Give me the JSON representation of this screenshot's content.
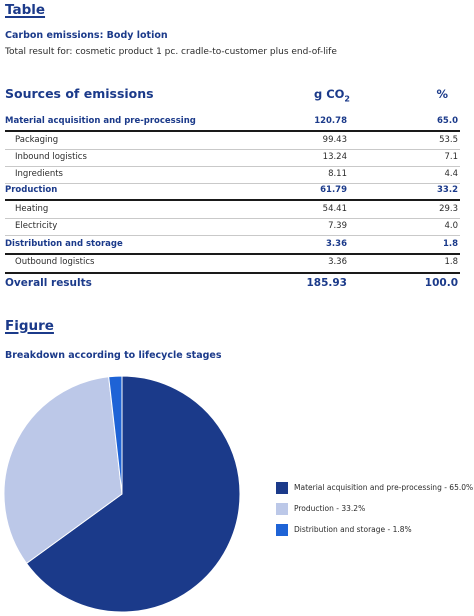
{
  "sections": {
    "table_title": "Table",
    "figure_title": "Figure"
  },
  "product": {
    "title": "Carbon emissions: Body lotion",
    "result_text": "Total result for: cosmetic product 1 pc. cradle-to-customer plus end-of-life"
  },
  "table": {
    "header": {
      "label": "Sources of emissions",
      "unit_prefix": "g CO",
      "unit_sub": "2",
      "percent": "%"
    },
    "rows": [
      {
        "label": "Material acquisition and pre-processing",
        "value": "120.78",
        "percent": "65.0"
      },
      {
        "label": "Packaging",
        "value": "99.43",
        "percent": "53.5"
      },
      {
        "label": "Inbound logistics",
        "value": "13.24",
        "percent": "7.1"
      },
      {
        "label": "Ingredients",
        "value": "8.11",
        "percent": "4.4"
      },
      {
        "label": "Production",
        "value": "61.79",
        "percent": "33.2"
      },
      {
        "label": "Heating",
        "value": "54.41",
        "percent": "29.3"
      },
      {
        "label": "Electricity",
        "value": "7.39",
        "percent": "4.0"
      },
      {
        "label": "Distribution and storage",
        "value": "3.36",
        "percent": "1.8"
      },
      {
        "label": "Outbound logistics",
        "value": "3.36",
        "percent": "1.8"
      }
    ],
    "total": {
      "label": "Overall results",
      "value": "185.93",
      "percent": "100.0"
    }
  },
  "figure": {
    "subtitle": "Breakdown according to lifecycle stages"
  },
  "chart_data": {
    "type": "pie",
    "title": "Breakdown according to lifecycle stages",
    "categories": [
      "Material acquisition and pre-processing",
      "Production",
      "Distribution and storage"
    ],
    "values": [
      65.0,
      33.2,
      1.8
    ],
    "colors": [
      "#1b3a8a",
      "#bcc8e8",
      "#1e63d6"
    ],
    "legend": [
      "Material acquisition and pre-processing - 65.0%",
      "Production - 33.2%",
      "Distribution and storage - 1.8%"
    ],
    "legend_position": "right"
  }
}
